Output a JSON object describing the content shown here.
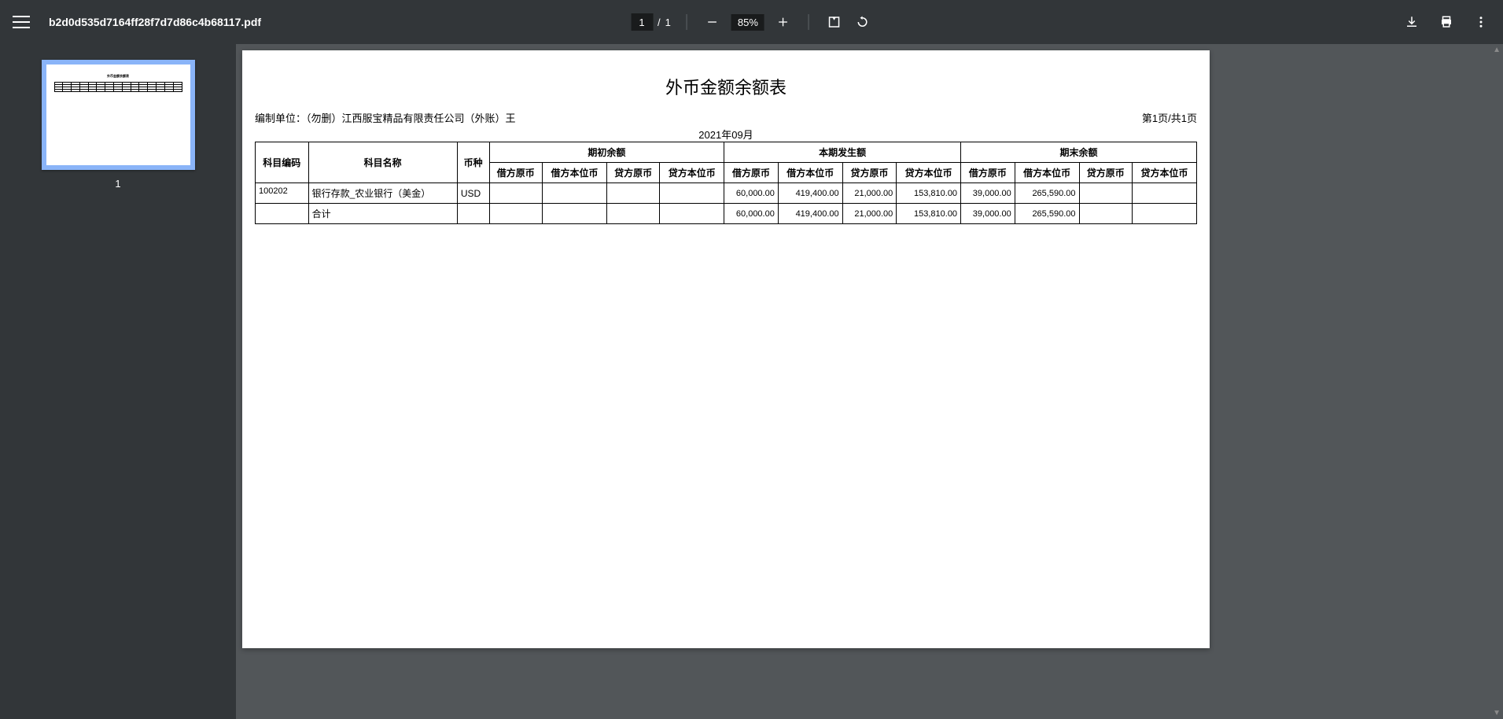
{
  "toolbar": {
    "filename": "b2d0d535d7164ff28f7d7d86c4b68117.pdf",
    "page_current": "1",
    "page_sep": "/",
    "page_total": "1",
    "zoom": "85%"
  },
  "sidebar": {
    "thumb_label": "1"
  },
  "doc": {
    "title": "外币金额余额表",
    "org_label": "编制单位：",
    "org_value": "（勿删）江西服宝精品有限责任公司（外账）王",
    "page_info": "第1页/共1页",
    "period": "2021年09月",
    "columns": {
      "code": "科目编码",
      "name": "科目名称",
      "currency": "币种",
      "group_begin": "期初余额",
      "group_current": "本期发生额",
      "group_end": "期末余额",
      "debit_orig": "借方原币",
      "debit_base": "借方本位币",
      "credit_orig": "贷方原币",
      "credit_base": "贷方本位币"
    },
    "rows": [
      {
        "code": "100202",
        "name": "银行存款_农业银行（美金）",
        "currency": "USD",
        "b_do": "",
        "b_db": "",
        "b_co": "",
        "b_cb": "",
        "c_do": "60,000.00",
        "c_db": "419,400.00",
        "c_co": "21,000.00",
        "c_cb": "153,810.00",
        "e_do": "39,000.00",
        "e_db": "265,590.00",
        "e_co": "",
        "e_cb": ""
      },
      {
        "code": "",
        "name": "合计",
        "currency": "",
        "b_do": "",
        "b_db": "",
        "b_co": "",
        "b_cb": "",
        "c_do": "60,000.00",
        "c_db": "419,400.00",
        "c_co": "21,000.00",
        "c_cb": "153,810.00",
        "e_do": "39,000.00",
        "e_db": "265,590.00",
        "e_co": "",
        "e_cb": ""
      }
    ]
  },
  "colors": {
    "toolbar_bg": "#323639",
    "viewer_bg": "#525659",
    "thumb_border": "#8ab4f8",
    "page_bg": "#ffffff",
    "text": "#000000"
  }
}
